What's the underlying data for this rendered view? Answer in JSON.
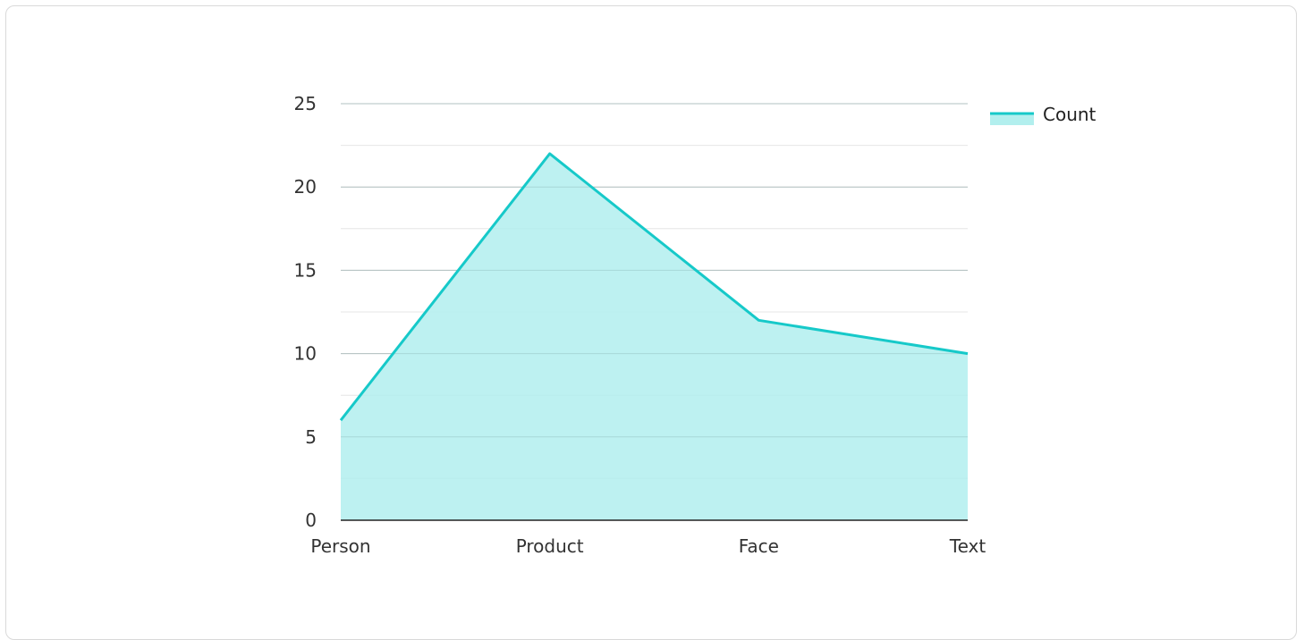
{
  "chart_data": {
    "type": "area",
    "categories": [
      "Person",
      "Product",
      "Face",
      "Text"
    ],
    "series": [
      {
        "name": "Count",
        "values": [
          6,
          22,
          12,
          10
        ]
      }
    ],
    "y_ticks": [
      0,
      5,
      10,
      15,
      20,
      25
    ],
    "ylim": [
      0,
      25
    ],
    "grid": true,
    "minor_grid": true,
    "legend_position": "top-right",
    "colors": {
      "line": "#16c9c9",
      "fill": "#b2efee",
      "grid_major": "#c4c4c4",
      "grid_minor": "#e6e6e6",
      "axis": "#222222"
    }
  }
}
